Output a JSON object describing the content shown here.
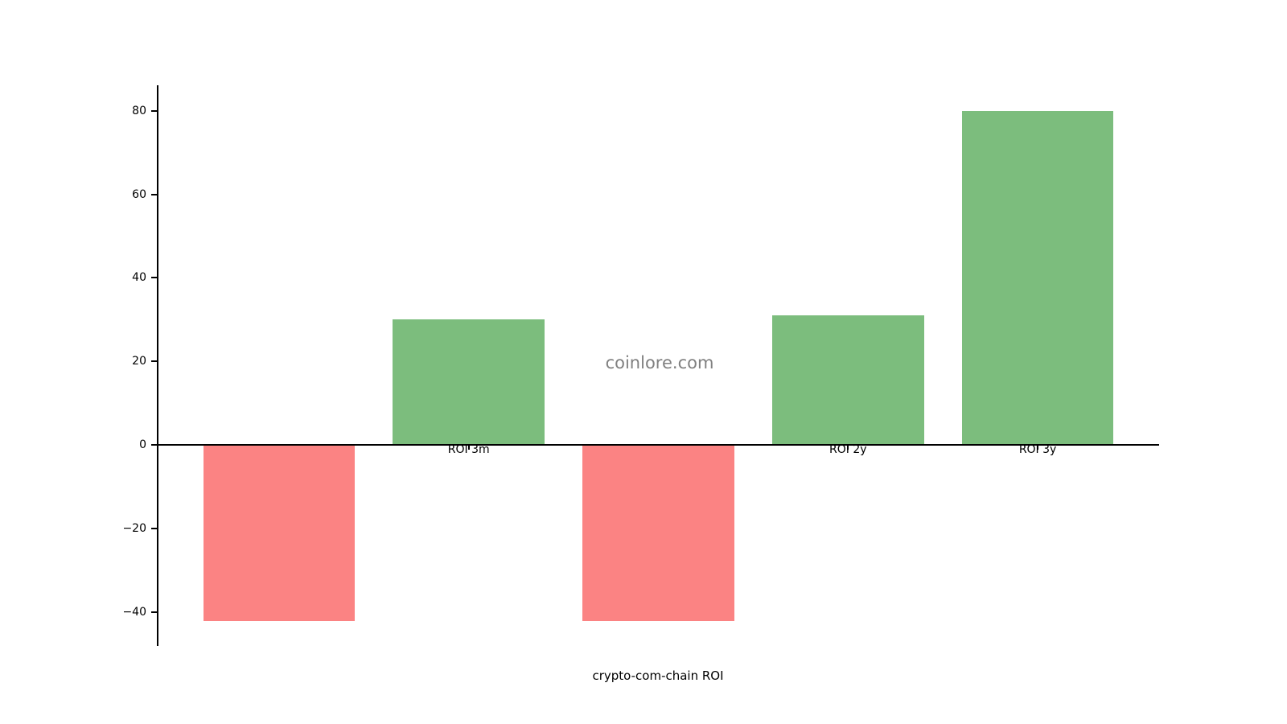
{
  "watermark": {
    "text": "coinlore.com",
    "color": "#808080"
  },
  "chart_data": {
    "type": "bar",
    "title": "",
    "xlabel": "crypto-com-chain ROI",
    "ylabel": "",
    "categories": [
      "",
      "ROI 3m",
      "",
      "ROI 2y",
      "ROI 3y"
    ],
    "values": [
      -42,
      30,
      -42,
      31,
      80
    ],
    "positive_color": "#7cbd7d",
    "negative_color": "#fb8383",
    "axis_color": "#000000",
    "yticks": [
      80,
      60,
      40,
      20,
      0,
      -20,
      -40
    ],
    "ylim": [
      -48.1,
      86.1
    ],
    "xlim": [
      -0.64,
      4.64
    ],
    "bar_rel_width": 0.8,
    "grid": false,
    "legend_position": "none"
  }
}
